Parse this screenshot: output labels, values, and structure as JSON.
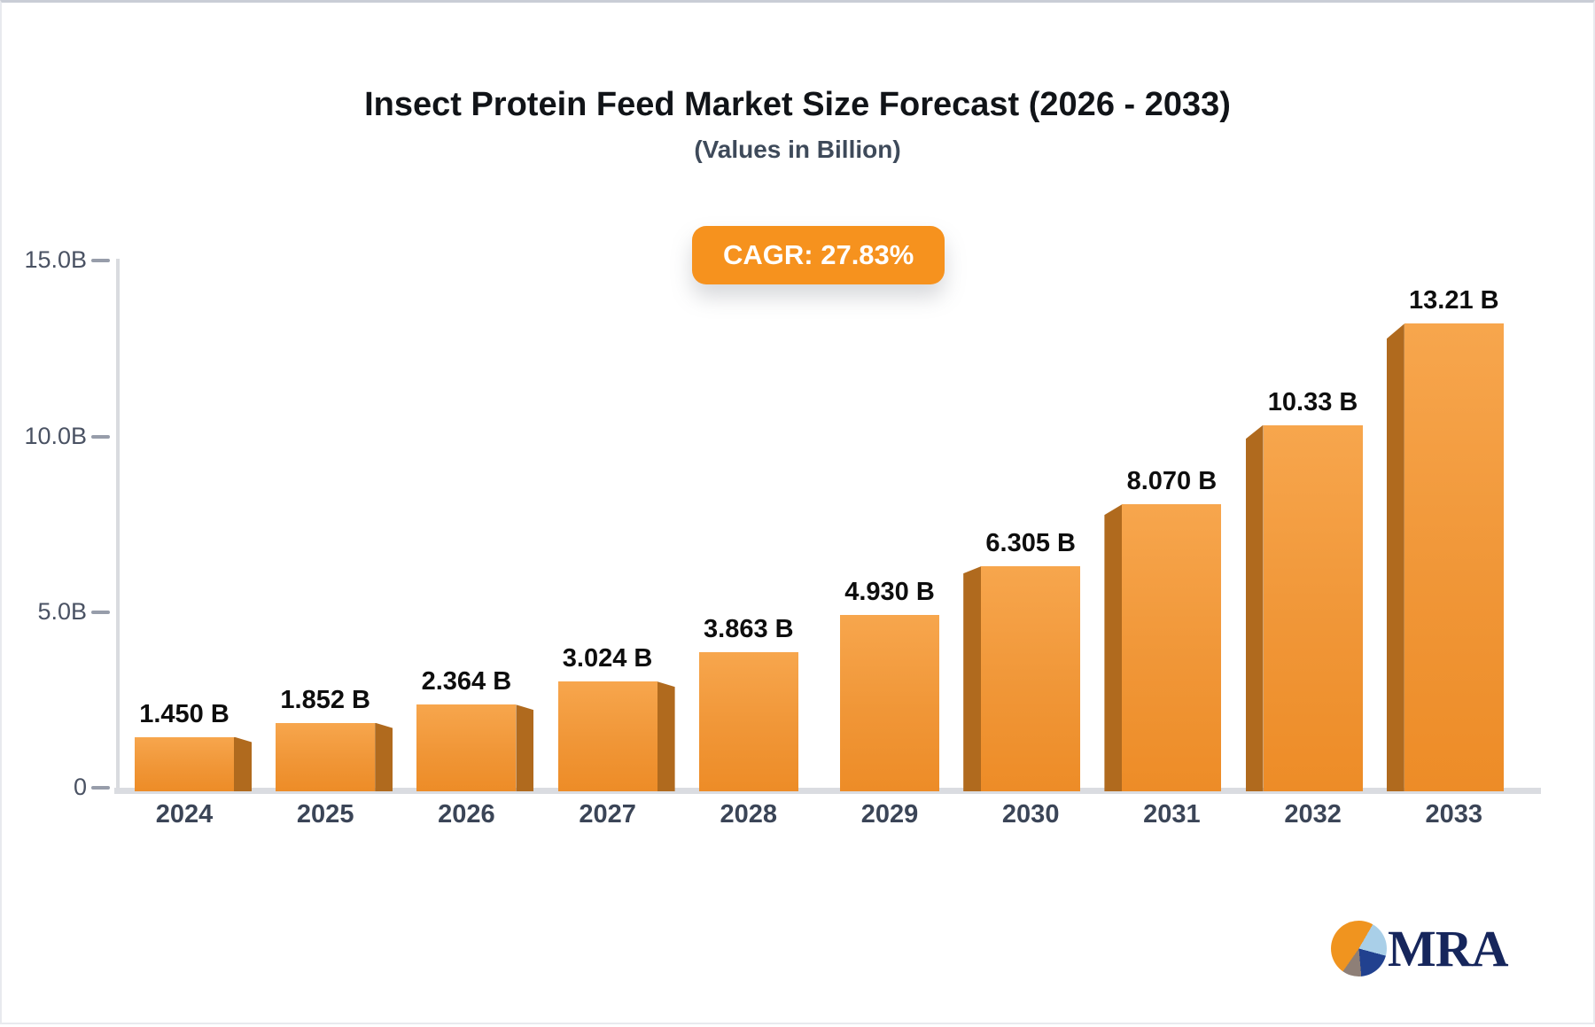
{
  "header": {
    "title": "Insect Protein Feed Market Size Forecast (2026 - 2033)",
    "subtitle": "(Values in Billion)"
  },
  "badge": {
    "label": "CAGR: 27.83%"
  },
  "brand": {
    "name": "MRA"
  },
  "colors": {
    "bar_face_top": "#f7a64d",
    "bar_face_bottom": "#ed8c27",
    "bar_side": "#b06a1e",
    "badge_bg": "#f6921e",
    "axis_line": "#dadce1",
    "tick_label": "#4a5263",
    "year_label": "#3b4557",
    "value_label": "#0e0e0e",
    "logo_navy": "#16265c",
    "logo_orange": "#f0941f",
    "logo_lightblue": "#a9cfe8",
    "logo_blue": "#21418f",
    "logo_gray": "#8e7f77"
  },
  "chart_data": {
    "type": "bar",
    "title": "Insect Protein Feed Market Size Forecast (2026 - 2033)",
    "subtitle": "(Values in Billion)",
    "annotation": "CAGR: 27.83%",
    "categories": [
      "2024",
      "2025",
      "2026",
      "2027",
      "2028",
      "2029",
      "2030",
      "2031",
      "2032",
      "2033"
    ],
    "values": [
      1.45,
      1.852,
      2.364,
      3.024,
      3.863,
      4.93,
      6.305,
      8.07,
      10.33,
      13.21
    ],
    "value_labels": [
      "1.450 B",
      "1.852 B",
      "2.364 B",
      "3.024 B",
      "3.863 B",
      "4.930 B",
      "6.305 B",
      "8.070 B",
      "10.33 B",
      "13.21 B"
    ],
    "xlabel": "",
    "ylabel": "",
    "ylim": [
      0,
      15
    ],
    "yticks": [
      {
        "label": "15.0B",
        "value": 15.0
      },
      {
        "label": "10.0B",
        "value": 10.0
      },
      {
        "label": "5.0B",
        "value": 5.0
      },
      {
        "label": "0",
        "value": 0
      }
    ],
    "grid": false,
    "legend_position": "none"
  }
}
